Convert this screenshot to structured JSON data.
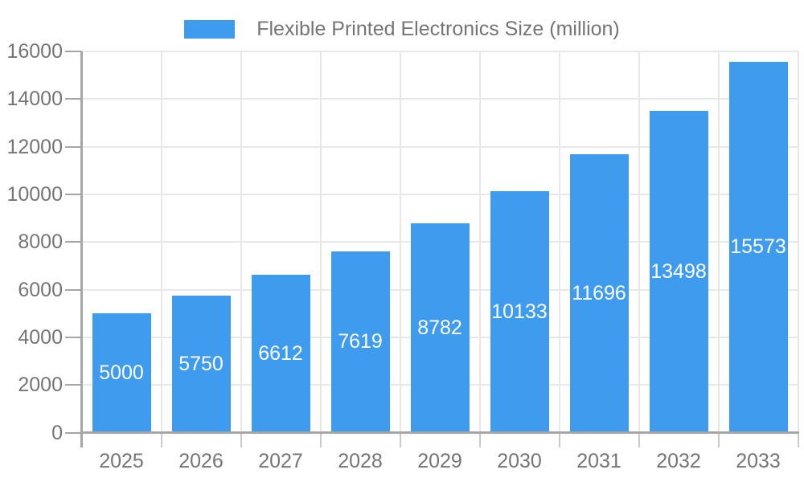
{
  "legend": {
    "series_label": "Flexible Printed Electronics Size (million)"
  },
  "colors": {
    "bar": "#3E9BEE",
    "grid_line": "#E8E8E8",
    "axis_line": "#A6A6A6",
    "minor_tick": "#C9C9C9",
    "tick_label": "#757575",
    "value_label": "#FFFFFF",
    "background": "#FFFFFF"
  },
  "chart_data": {
    "type": "bar",
    "title": "",
    "series": [
      {
        "name": "Flexible Printed Electronics Size (million)",
        "values": [
          5000,
          5750,
          6612,
          7619,
          8782,
          10133,
          11696,
          13498,
          15573
        ]
      }
    ],
    "categories": [
      "2025",
      "2026",
      "2027",
      "2028",
      "2029",
      "2030",
      "2031",
      "2032",
      "2033"
    ],
    "value_labels_text": [
      "5000",
      "5750",
      "6612",
      "7619",
      "8782",
      "10133",
      "11696",
      "13498",
      "15573"
    ],
    "xlabel": "",
    "ylabel": "",
    "ylim": [
      0,
      16000
    ],
    "yticks": [
      0,
      2000,
      4000,
      6000,
      8000,
      10000,
      12000,
      14000,
      16000
    ],
    "grid": true,
    "legend_position": "top",
    "value_labels": "inside-center-white"
  }
}
